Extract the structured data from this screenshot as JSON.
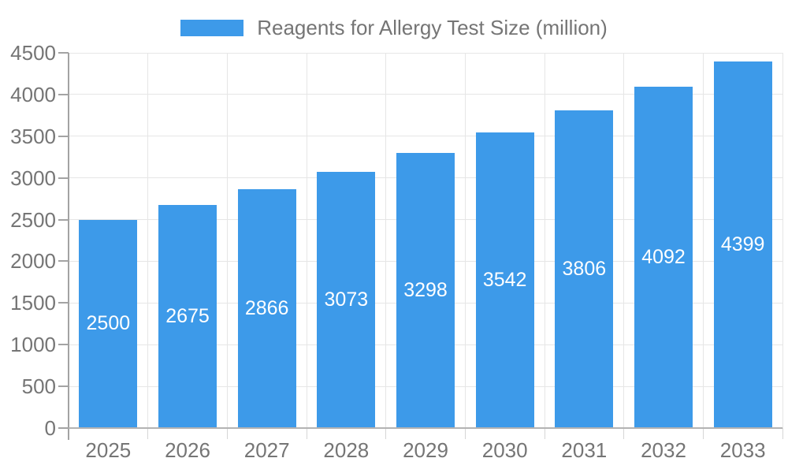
{
  "legend": {
    "label": "Reagents for Allergy Test Size (million)"
  },
  "chart_data": {
    "type": "bar",
    "title": "Reagents for Allergy Test Size (million)",
    "categories": [
      "2025",
      "2026",
      "2027",
      "2028",
      "2029",
      "2030",
      "2031",
      "2032",
      "2033"
    ],
    "values": [
      2500,
      2675,
      2866,
      3073,
      3298,
      3542,
      3806,
      4092,
      4399
    ],
    "xlabel": "",
    "ylabel": "",
    "ylim": [
      0,
      4500
    ],
    "ytick_step": 500,
    "yticks": [
      0,
      500,
      1000,
      1500,
      2000,
      2500,
      3000,
      3500,
      4000,
      4500
    ],
    "grid": true,
    "legend_position": "top-center",
    "value_labels": "inside-center",
    "colors": {
      "bar": "#3D9AE9",
      "value_label": "#FFFFFF",
      "axis_text": "#757575",
      "axis_line": "#A3A3A3",
      "gridline": "#E6E6E6",
      "background": "#FFFFFF"
    }
  }
}
